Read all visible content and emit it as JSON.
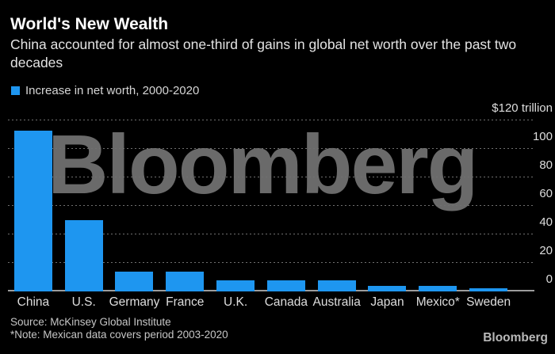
{
  "header": {
    "title": "World's New Wealth",
    "subtitle": "China accounted for almost one-third of gains in global net worth over the past two decades"
  },
  "legend": {
    "label": "Increase in net worth, 2000-2020",
    "swatch_color": "#1e96f0"
  },
  "watermark": "Bloomberg",
  "footer": {
    "source": "Source: McKinsey Global Institute",
    "note": "*Note: Mexican data covers period 2003-2020",
    "brand": "Bloomberg"
  },
  "chart_data": {
    "type": "bar",
    "title": "World's New Wealth",
    "subtitle": "China accounted for almost one-third of gains in global net worth over the past two decades",
    "legend_entries": [
      "Increase in net worth, 2000-2020"
    ],
    "legend_position": "top-left",
    "categories": [
      "China",
      "U.S.",
      "Germany",
      "France",
      "U.K.",
      "Canada",
      "Australia",
      "Japan",
      "Mexico*",
      "Sweden"
    ],
    "values": [
      113,
      50,
      14,
      14,
      8,
      8,
      8,
      4,
      4,
      2
    ],
    "units": "USD trillion",
    "ylim": [
      0,
      120
    ],
    "yticks": [
      {
        "value": 120,
        "label": "$120 trillion"
      },
      {
        "value": 100,
        "label": "100"
      },
      {
        "value": 80,
        "label": "80"
      },
      {
        "value": 60,
        "label": "60"
      },
      {
        "value": 40,
        "label": "40"
      },
      {
        "value": 20,
        "label": "20"
      },
      {
        "value": 0,
        "label": "0"
      }
    ],
    "grid": "horizontal-dotted",
    "bar_color": "#1e96f0",
    "grid_color": "#707070",
    "axis_color": "#9c9c9c",
    "watermark_color": "#6a6a6a",
    "background_color": "#000000",
    "source": "Source: McKinsey Global Institute",
    "note": "*Note: Mexican data covers period 2003-2020"
  }
}
